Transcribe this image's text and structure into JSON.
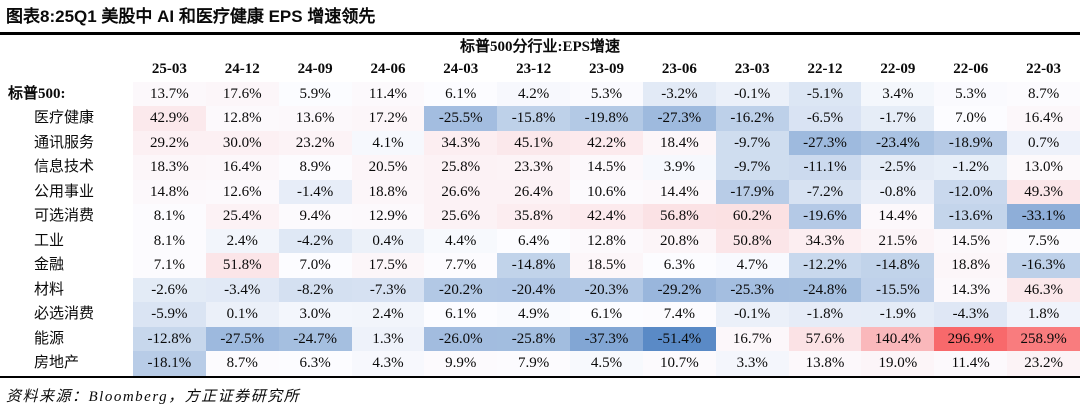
{
  "figure": {
    "title": "图表8:25Q1 美股中 AI 和医疗健康 EPS 增速领先",
    "source": "资料来源：Bloomberg，方正证券研究所"
  },
  "chart_data": {
    "type": "heatmap",
    "title": "标普500分行业:EPS增速",
    "value_unit": "percent",
    "value_format": "one_decimal_percent",
    "columns": [
      "25-03",
      "24-12",
      "24-09",
      "24-06",
      "24-03",
      "23-12",
      "23-09",
      "23-06",
      "23-03",
      "22-12",
      "22-09",
      "22-06",
      "22-03"
    ],
    "rows": [
      {
        "label": "标普500:",
        "group": true,
        "values": [
          13.7,
          17.6,
          5.9,
          11.4,
          6.1,
          4.2,
          5.3,
          -3.2,
          -0.1,
          -5.1,
          3.4,
          5.3,
          8.7
        ]
      },
      {
        "label": "医疗健康",
        "group": false,
        "values": [
          42.9,
          12.8,
          13.6,
          17.2,
          -25.5,
          -15.8,
          -19.8,
          -27.3,
          -16.2,
          -6.5,
          -1.7,
          7.0,
          16.4
        ]
      },
      {
        "label": "通讯服务",
        "group": false,
        "values": [
          29.2,
          30.0,
          23.2,
          4.1,
          34.3,
          45.1,
          42.2,
          18.4,
          -9.7,
          -27.3,
          -23.4,
          -18.9,
          0.7
        ]
      },
      {
        "label": "信息技术",
        "group": false,
        "values": [
          18.3,
          16.4,
          8.9,
          20.5,
          25.8,
          23.3,
          14.5,
          3.9,
          -9.7,
          -11.1,
          -2.5,
          -1.2,
          13.0
        ]
      },
      {
        "label": "公用事业",
        "group": false,
        "values": [
          14.8,
          12.6,
          -1.4,
          18.8,
          26.6,
          26.4,
          10.6,
          14.4,
          -17.9,
          -7.2,
          -0.8,
          -12.0,
          49.3
        ]
      },
      {
        "label": "可选消费",
        "group": false,
        "values": [
          8.1,
          25.4,
          9.4,
          12.9,
          25.6,
          35.8,
          42.4,
          56.8,
          60.2,
          -19.6,
          14.4,
          -13.6,
          -33.1
        ]
      },
      {
        "label": "工业",
        "group": false,
        "values": [
          8.1,
          2.4,
          -4.2,
          0.4,
          4.4,
          6.4,
          12.8,
          20.8,
          50.8,
          34.3,
          21.5,
          14.5,
          7.5
        ]
      },
      {
        "label": "金融",
        "group": false,
        "values": [
          7.1,
          51.8,
          7.0,
          17.5,
          7.7,
          -14.8,
          18.5,
          6.3,
          4.7,
          -12.2,
          -14.8,
          18.8,
          -16.3
        ]
      },
      {
        "label": "材料",
        "group": false,
        "values": [
          -2.6,
          -3.4,
          -8.2,
          -7.3,
          -20.2,
          -20.4,
          -20.3,
          -29.2,
          -25.3,
          -24.8,
          -15.5,
          14.3,
          46.3
        ]
      },
      {
        "label": "必选消费",
        "group": false,
        "values": [
          -5.9,
          0.1,
          3.0,
          2.4,
          6.1,
          4.9,
          6.1,
          7.4,
          -0.1,
          -1.8,
          -1.9,
          -4.3,
          1.8
        ]
      },
      {
        "label": "能源",
        "group": false,
        "values": [
          -12.8,
          -27.5,
          -24.7,
          1.3,
          -26.0,
          -25.8,
          -37.3,
          -51.4,
          16.7,
          57.6,
          140.4,
          296.9,
          258.9
        ]
      },
      {
        "label": "房地产",
        "group": false,
        "values": [
          -18.1,
          8.7,
          6.3,
          4.3,
          9.9,
          7.9,
          4.5,
          10.7,
          3.3,
          13.8,
          19.0,
          11.4,
          23.2
        ]
      }
    ],
    "colorscale": {
      "min_color": "#5A8AC6",
      "mid_color": "#FCFCFF",
      "max_color": "#F8696B",
      "midpoint": "median"
    },
    "legend": "none",
    "grid": "off"
  }
}
